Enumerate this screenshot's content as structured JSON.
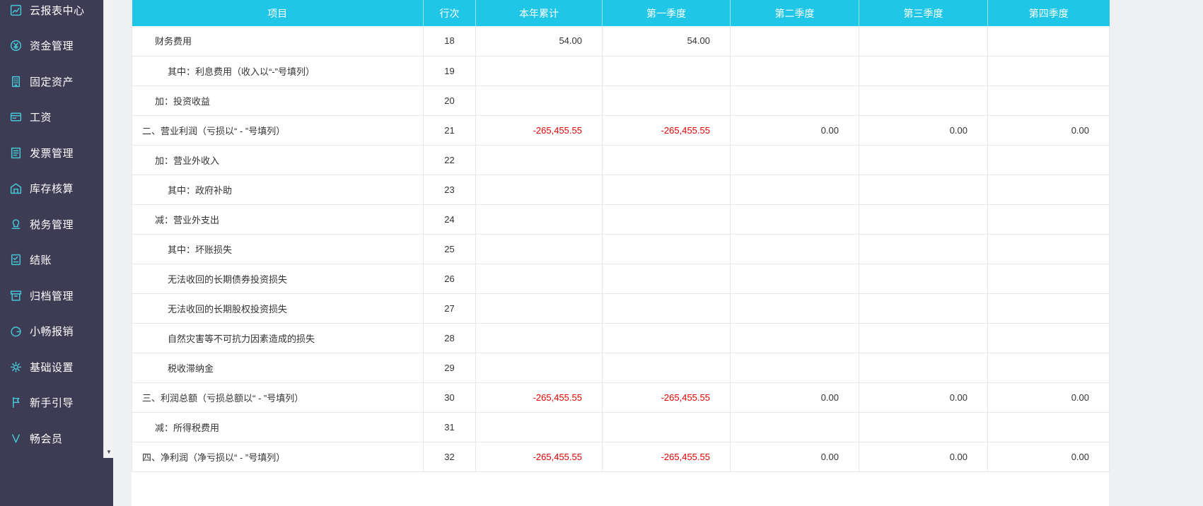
{
  "colors": {
    "header_bg": "#1fc6e6",
    "negative": "#e60000",
    "sidebar_bg": "#3e3b54",
    "sidebar_icon": "#45c8d6"
  },
  "sidebar": {
    "items": [
      {
        "label": "云报表中心",
        "icon": "cloud-report-icon"
      },
      {
        "label": "资金管理",
        "icon": "funds-icon"
      },
      {
        "label": "固定资产",
        "icon": "fixed-assets-icon"
      },
      {
        "label": "工资",
        "icon": "salary-icon"
      },
      {
        "label": "发票管理",
        "icon": "invoice-icon"
      },
      {
        "label": "库存核算",
        "icon": "inventory-icon"
      },
      {
        "label": "税务管理",
        "icon": "tax-icon"
      },
      {
        "label": "结账",
        "icon": "closing-icon"
      },
      {
        "label": "归档管理",
        "icon": "archive-icon"
      },
      {
        "label": "小畅报销",
        "icon": "reimburse-icon"
      },
      {
        "label": "基础设置",
        "icon": "settings-icon"
      },
      {
        "label": "新手引导",
        "icon": "guide-icon"
      },
      {
        "label": "畅会员",
        "icon": "member-icon"
      }
    ],
    "scroll_down_glyph": "▼"
  },
  "table": {
    "headers": [
      "项目",
      "行次",
      "本年累计",
      "第一季度",
      "第二季度",
      "第三季度",
      "第四季度"
    ],
    "rows": [
      {
        "item": "财务费用",
        "indent": 1,
        "line": "18",
        "values": [
          "54.00",
          "54.00",
          "",
          "",
          ""
        ]
      },
      {
        "item": "其中：利息费用（收入以“-”号填列）",
        "indent": 2,
        "line": "19",
        "values": [
          "",
          "",
          "",
          "",
          ""
        ]
      },
      {
        "item": "加：投资收益",
        "indent": 1,
        "line": "20",
        "values": [
          "",
          "",
          "",
          "",
          ""
        ]
      },
      {
        "item": "二、营业利润（亏损以“ - ”号填列）",
        "indent": 0,
        "line": "21",
        "values": [
          "-265,455.55",
          "-265,455.55",
          "0.00",
          "0.00",
          "0.00"
        ]
      },
      {
        "item": "加：营业外收入",
        "indent": 1,
        "line": "22",
        "values": [
          "",
          "",
          "",
          "",
          ""
        ]
      },
      {
        "item": "其中：政府补助",
        "indent": 2,
        "line": "23",
        "values": [
          "",
          "",
          "",
          "",
          ""
        ]
      },
      {
        "item": "减：营业外支出",
        "indent": 1,
        "line": "24",
        "values": [
          "",
          "",
          "",
          "",
          ""
        ]
      },
      {
        "item": "其中：坏账损失",
        "indent": 2,
        "line": "25",
        "values": [
          "",
          "",
          "",
          "",
          ""
        ]
      },
      {
        "item": "无法收回的长期债券投资损失",
        "indent": 2,
        "line": "26",
        "values": [
          "",
          "",
          "",
          "",
          ""
        ]
      },
      {
        "item": "无法收回的长期股权投资损失",
        "indent": 2,
        "line": "27",
        "values": [
          "",
          "",
          "",
          "",
          ""
        ]
      },
      {
        "item": "自然灾害等不可抗力因素造成的损失",
        "indent": 2,
        "line": "28",
        "values": [
          "",
          "",
          "",
          "",
          ""
        ]
      },
      {
        "item": "税收滞纳金",
        "indent": 2,
        "line": "29",
        "values": [
          "",
          "",
          "",
          "",
          ""
        ]
      },
      {
        "item": "三、利润总额（亏损总额以“ - ”号填列）",
        "indent": 0,
        "line": "30",
        "values": [
          "-265,455.55",
          "-265,455.55",
          "0.00",
          "0.00",
          "0.00"
        ]
      },
      {
        "item": "减：所得税费用",
        "indent": 1,
        "line": "31",
        "values": [
          "",
          "",
          "",
          "",
          ""
        ]
      },
      {
        "item": "四、净利润（净亏损以“ - ”号填列）",
        "indent": 0,
        "line": "32",
        "values": [
          "-265,455.55",
          "-265,455.55",
          "0.00",
          "0.00",
          "0.00"
        ]
      }
    ]
  }
}
